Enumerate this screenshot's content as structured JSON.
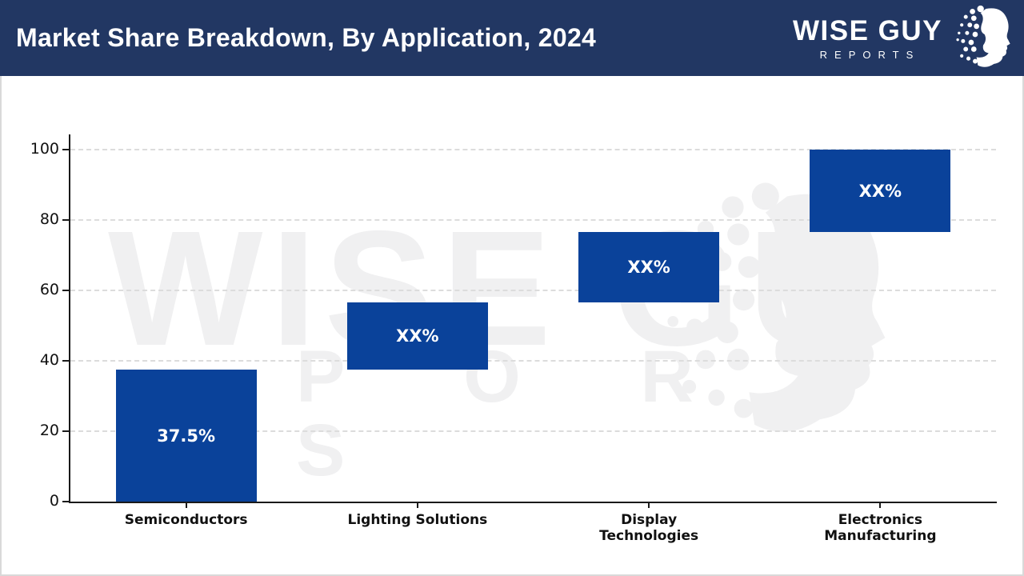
{
  "header": {
    "title": "Market Share Breakdown, By Application, 2024",
    "bg_color": "#223763",
    "logo": {
      "line1": "WISE GUY",
      "line2": "REPORTS"
    }
  },
  "watermark": {
    "line1": "WISE GU",
    "line2": "P O R T S"
  },
  "chart_data": {
    "type": "bar",
    "subtype": "waterfall-floating-bars",
    "title": "Market Share Breakdown, By Application, 2024",
    "xlabel": "",
    "ylabel": "",
    "ylim": [
      0,
      105
    ],
    "y_ticks": [
      0,
      20,
      40,
      60,
      80,
      100
    ],
    "grid": "horizontal dashed",
    "bar_color": "#0a429a",
    "categories": [
      "Semiconductors",
      "Lighting Solutions",
      "Display\nTechnologies",
      "Electronics\nManufacturing"
    ],
    "bars": [
      {
        "category": "Semiconductors",
        "start": 0,
        "end": 37.5,
        "label": "37.5%"
      },
      {
        "category": "Lighting Solutions",
        "start": 37.5,
        "end": 56.5,
        "label": "XX%"
      },
      {
        "category": "Display Technologies",
        "start": 56.5,
        "end": 76.5,
        "label": "XX%"
      },
      {
        "category": "Electronics Manufacturing",
        "start": 76.5,
        "end": 100,
        "label": "XX%"
      }
    ]
  }
}
